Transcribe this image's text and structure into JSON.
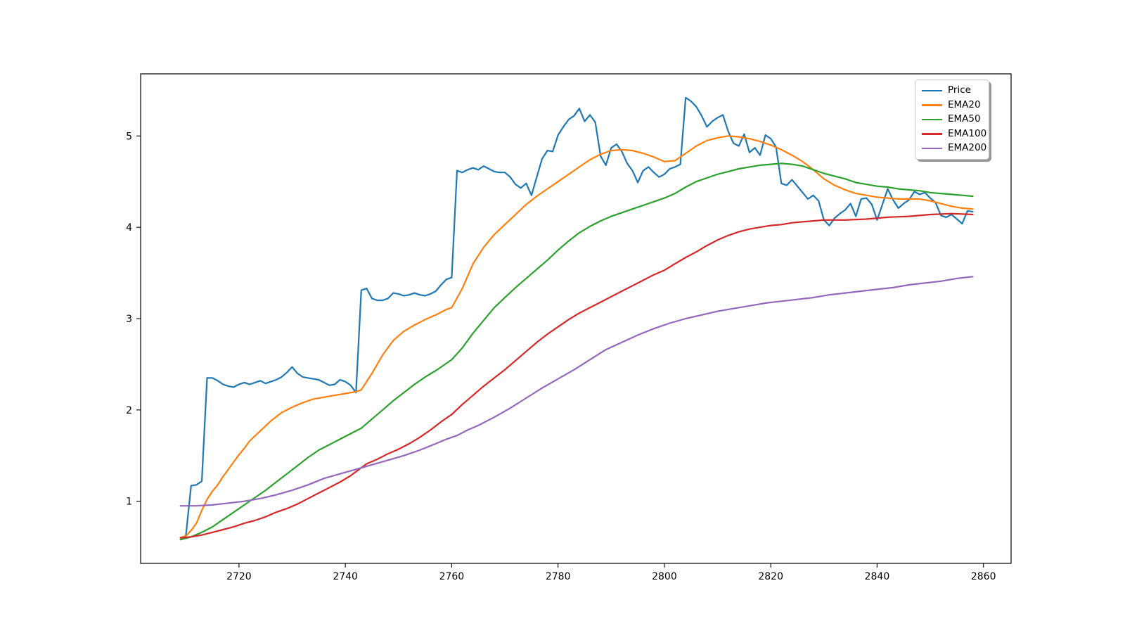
{
  "chart_data": {
    "type": "line",
    "title": "",
    "xlabel": "",
    "ylabel": "",
    "grid": false,
    "legend_position": "upper right",
    "background_color": "#ffffff",
    "axis_color": "#000000",
    "xlim": [
      2701.5,
      2865.2
    ],
    "ylim": [
      0.32,
      5.68
    ],
    "x_ticks": [
      2720,
      2740,
      2760,
      2780,
      2800,
      2820,
      2840,
      2860
    ],
    "y_ticks": [
      1,
      2,
      3,
      4,
      5
    ],
    "series": [
      {
        "name": "Price",
        "color": "#1f77b4",
        "x_start": 2709,
        "x_step": 1,
        "values": [
          0.6,
          0.62,
          1.17,
          1.18,
          1.22,
          2.35,
          2.35,
          2.32,
          2.28,
          2.26,
          2.25,
          2.28,
          2.3,
          2.28,
          2.3,
          2.32,
          2.29,
          2.31,
          2.33,
          2.36,
          2.41,
          2.47,
          2.4,
          2.36,
          2.35,
          2.34,
          2.33,
          2.3,
          2.27,
          2.28,
          2.33,
          2.31,
          2.27,
          2.19,
          3.31,
          3.33,
          3.22,
          3.2,
          3.2,
          3.22,
          3.28,
          3.27,
          3.25,
          3.26,
          3.28,
          3.26,
          3.25,
          3.27,
          3.3,
          3.37,
          3.43,
          3.45,
          4.62,
          4.6,
          4.63,
          4.65,
          4.63,
          4.67,
          4.64,
          4.61,
          4.6,
          4.6,
          4.55,
          4.47,
          4.43,
          4.48,
          4.35,
          4.55,
          4.75,
          4.84,
          4.83,
          5.01,
          5.1,
          5.18,
          5.22,
          5.3,
          5.16,
          5.23,
          5.15,
          4.78,
          4.68,
          4.87,
          4.91,
          4.83,
          4.7,
          4.62,
          4.49,
          4.62,
          4.66,
          4.6,
          4.55,
          4.58,
          4.64,
          4.66,
          4.69,
          5.42,
          5.38,
          5.32,
          5.22,
          5.1,
          5.16,
          5.2,
          5.23,
          5.05,
          4.92,
          4.89,
          5.02,
          4.82,
          4.87,
          4.79,
          5.01,
          4.97,
          4.88,
          4.48,
          4.46,
          4.52,
          4.45,
          4.38,
          4.31,
          4.35,
          4.29,
          4.08,
          4.02,
          4.1,
          4.15,
          4.19,
          4.26,
          4.12,
          4.31,
          4.32,
          4.25,
          4.08,
          4.25,
          4.42,
          4.3,
          4.21,
          4.26,
          4.3,
          4.39,
          4.36,
          4.38,
          4.32,
          4.27,
          4.13,
          4.11,
          4.14,
          4.09,
          4.04,
          4.18,
          4.17
        ]
      },
      {
        "name": "EMA20",
        "color": "#ff7f0e",
        "x": [
          2709,
          2710,
          2711,
          2712,
          2713,
          2714,
          2715,
          2716,
          2717,
          2718,
          2719,
          2720,
          2721,
          2722,
          2724,
          2726,
          2728,
          2730,
          2732,
          2734,
          2736,
          2738,
          2740,
          2742,
          2743,
          2745,
          2747,
          2749,
          2751,
          2753,
          2755,
          2757,
          2759,
          2760,
          2762,
          2764,
          2766,
          2768,
          2770,
          2772,
          2774,
          2776,
          2778,
          2780,
          2782,
          2784,
          2786,
          2788,
          2790,
          2792,
          2794,
          2796,
          2798,
          2800,
          2802,
          2804,
          2806,
          2808,
          2810,
          2812,
          2814,
          2816,
          2818,
          2820,
          2822,
          2824,
          2826,
          2828,
          2830,
          2832,
          2834,
          2836,
          2838,
          2840,
          2842,
          2844,
          2846,
          2848,
          2850,
          2852,
          2854,
          2856,
          2858
        ],
        "y": [
          0.6,
          0.62,
          0.68,
          0.76,
          0.9,
          1.02,
          1.11,
          1.18,
          1.27,
          1.35,
          1.43,
          1.51,
          1.58,
          1.66,
          1.77,
          1.88,
          1.97,
          2.03,
          2.08,
          2.12,
          2.14,
          2.16,
          2.18,
          2.2,
          2.22,
          2.4,
          2.6,
          2.76,
          2.86,
          2.93,
          2.99,
          3.04,
          3.1,
          3.12,
          3.33,
          3.6,
          3.78,
          3.92,
          4.03,
          4.14,
          4.25,
          4.34,
          4.42,
          4.5,
          4.58,
          4.66,
          4.74,
          4.8,
          4.84,
          4.85,
          4.84,
          4.81,
          4.77,
          4.72,
          4.73,
          4.81,
          4.89,
          4.95,
          4.98,
          5.0,
          4.99,
          4.97,
          4.94,
          4.9,
          4.85,
          4.79,
          4.72,
          4.63,
          4.53,
          4.46,
          4.41,
          4.37,
          4.35,
          4.33,
          4.32,
          4.31,
          4.31,
          4.31,
          4.29,
          4.26,
          4.23,
          4.21,
          4.2
        ]
      },
      {
        "name": "EMA50",
        "color": "#2ca02c",
        "x": [
          2709,
          2711,
          2713,
          2715,
          2717,
          2719,
          2721,
          2723,
          2725,
          2727,
          2729,
          2731,
          2733,
          2735,
          2737,
          2739,
          2741,
          2743,
          2745,
          2747,
          2749,
          2751,
          2753,
          2755,
          2757,
          2759,
          2760,
          2762,
          2764,
          2766,
          2768,
          2770,
          2772,
          2774,
          2776,
          2778,
          2780,
          2782,
          2784,
          2786,
          2788,
          2790,
          2792,
          2794,
          2796,
          2798,
          2800,
          2802,
          2804,
          2806,
          2808,
          2810,
          2812,
          2814,
          2816,
          2818,
          2820,
          2822,
          2824,
          2826,
          2828,
          2830,
          2832,
          2834,
          2836,
          2838,
          2840,
          2842,
          2844,
          2846,
          2848,
          2850,
          2852,
          2854,
          2856,
          2858
        ],
        "y": [
          0.58,
          0.61,
          0.66,
          0.72,
          0.8,
          0.88,
          0.96,
          1.04,
          1.12,
          1.21,
          1.3,
          1.39,
          1.48,
          1.56,
          1.62,
          1.68,
          1.74,
          1.8,
          1.9,
          2.0,
          2.1,
          2.19,
          2.28,
          2.36,
          2.43,
          2.51,
          2.55,
          2.68,
          2.84,
          2.98,
          3.12,
          3.23,
          3.34,
          3.44,
          3.54,
          3.64,
          3.75,
          3.85,
          3.94,
          4.01,
          4.07,
          4.12,
          4.16,
          4.2,
          4.24,
          4.28,
          4.32,
          4.37,
          4.44,
          4.5,
          4.54,
          4.58,
          4.61,
          4.64,
          4.66,
          4.68,
          4.69,
          4.7,
          4.69,
          4.67,
          4.63,
          4.59,
          4.56,
          4.53,
          4.49,
          4.47,
          4.45,
          4.44,
          4.42,
          4.41,
          4.4,
          4.38,
          4.37,
          4.36,
          4.35,
          4.34
        ]
      },
      {
        "name": "EMA100",
        "color": "#d62728",
        "x": [
          2709,
          2711,
          2713,
          2715,
          2717,
          2719,
          2721,
          2723,
          2725,
          2727,
          2729,
          2731,
          2733,
          2735,
          2737,
          2739,
          2741,
          2744,
          2746,
          2748,
          2750,
          2752,
          2754,
          2756,
          2758,
          2760,
          2762,
          2764,
          2766,
          2768,
          2770,
          2772,
          2774,
          2776,
          2778,
          2780,
          2782,
          2784,
          2786,
          2788,
          2790,
          2792,
          2794,
          2796,
          2798,
          2800,
          2802,
          2804,
          2806,
          2808,
          2810,
          2812,
          2814,
          2816,
          2818,
          2820,
          2822,
          2824,
          2826,
          2828,
          2830,
          2834,
          2838,
          2842,
          2846,
          2850,
          2854,
          2858
        ],
        "y": [
          0.6,
          0.61,
          0.63,
          0.66,
          0.69,
          0.72,
          0.76,
          0.79,
          0.83,
          0.88,
          0.92,
          0.97,
          1.03,
          1.09,
          1.15,
          1.21,
          1.28,
          1.41,
          1.46,
          1.52,
          1.57,
          1.63,
          1.7,
          1.78,
          1.87,
          1.95,
          2.06,
          2.16,
          2.26,
          2.35,
          2.44,
          2.54,
          2.64,
          2.74,
          2.83,
          2.91,
          2.99,
          3.06,
          3.12,
          3.18,
          3.24,
          3.3,
          3.36,
          3.42,
          3.48,
          3.53,
          3.6,
          3.67,
          3.73,
          3.8,
          3.86,
          3.91,
          3.95,
          3.98,
          4.0,
          4.02,
          4.03,
          4.05,
          4.06,
          4.07,
          4.08,
          4.08,
          4.09,
          4.11,
          4.12,
          4.14,
          4.15,
          4.14
        ]
      },
      {
        "name": "EMA200",
        "color": "#9467bd",
        "x": [
          2709,
          2712,
          2715,
          2718,
          2721,
          2724,
          2727,
          2730,
          2733,
          2736,
          2739,
          2742,
          2745,
          2748,
          2751,
          2754,
          2757,
          2759,
          2761,
          2763,
          2765,
          2768,
          2771,
          2774,
          2777,
          2780,
          2783,
          2786,
          2789,
          2792,
          2795,
          2798,
          2801,
          2804,
          2807,
          2810,
          2813,
          2816,
          2819,
          2822,
          2825,
          2828,
          2831,
          2834,
          2837,
          2840,
          2843,
          2846,
          2849,
          2852,
          2855,
          2858
        ],
        "y": [
          0.95,
          0.95,
          0.96,
          0.98,
          1.0,
          1.03,
          1.07,
          1.12,
          1.18,
          1.25,
          1.3,
          1.35,
          1.4,
          1.45,
          1.5,
          1.56,
          1.63,
          1.68,
          1.72,
          1.78,
          1.83,
          1.92,
          2.02,
          2.13,
          2.24,
          2.34,
          2.44,
          2.55,
          2.66,
          2.74,
          2.82,
          2.89,
          2.95,
          3.0,
          3.04,
          3.08,
          3.11,
          3.14,
          3.17,
          3.19,
          3.21,
          3.23,
          3.26,
          3.28,
          3.3,
          3.32,
          3.34,
          3.37,
          3.39,
          3.41,
          3.44,
          3.46
        ]
      }
    ]
  },
  "legend": {
    "labels": [
      "Price",
      "EMA20",
      "EMA50",
      "EMA100",
      "EMA200"
    ]
  }
}
